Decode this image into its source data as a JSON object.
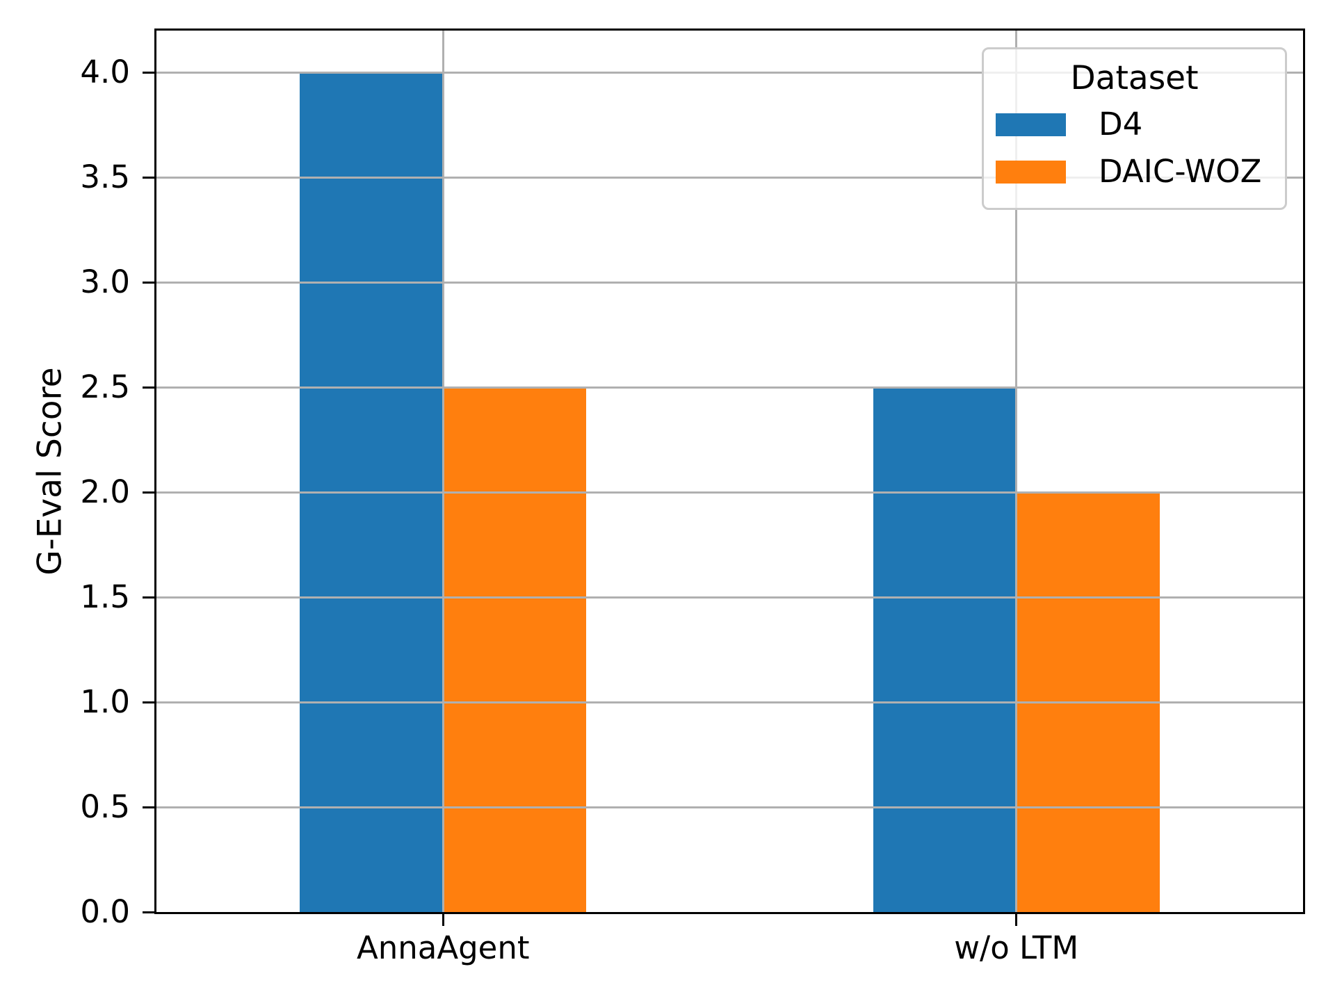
{
  "chart_data": {
    "type": "bar",
    "title": "",
    "xlabel": "",
    "ylabel": "G-Eval Score",
    "categories": [
      "AnnaAgent",
      "w/o LTM"
    ],
    "series": [
      {
        "name": "D4",
        "color": "#1f77b4",
        "values": [
          4.0,
          2.5
        ]
      },
      {
        "name": "DAIC-WOZ",
        "color": "#ff7f0e",
        "values": [
          2.5,
          2.0
        ]
      }
    ],
    "ylim": [
      0.0,
      4.2
    ],
    "yticks": [
      "0.0",
      "0.5",
      "1.0",
      "1.5",
      "2.0",
      "2.5",
      "3.0",
      "3.5",
      "4.0"
    ],
    "grid": true,
    "grid_on_top_of_bars": true,
    "legend": {
      "title": "Dataset",
      "position": "upper right"
    }
  },
  "colors": {
    "background": "#ffffff",
    "spine": "#000000",
    "grid": "#b0b0b0",
    "text": "#000000",
    "legend_border": "#cccccc"
  }
}
